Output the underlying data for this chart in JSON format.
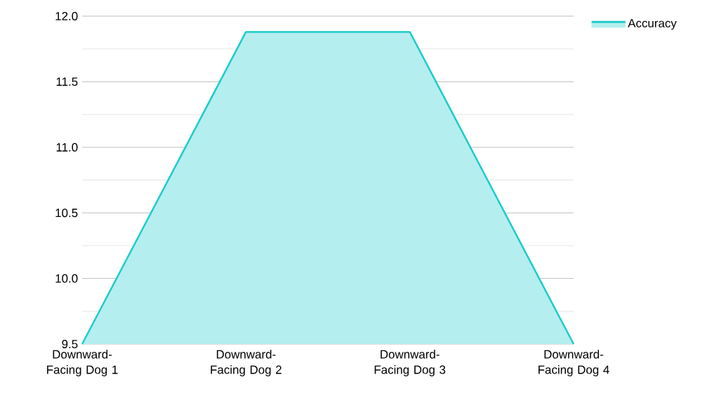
{
  "chart_data": {
    "type": "area",
    "categories": [
      "Downward-Facing Dog 1",
      "Downward-Facing Dog 2",
      "Downward-Facing Dog 3",
      "Downward-Facing Dog 4"
    ],
    "series": [
      {
        "name": "Accuracy",
        "color": "#1ecbcb",
        "values": [
          9.5,
          11.88,
          11.88,
          9.5
        ]
      }
    ],
    "ylim": [
      9.5,
      12.0
    ],
    "yticks": [
      {
        "value": 9.5,
        "label": "9.5"
      },
      {
        "value": 10.0,
        "label": "10.0"
      },
      {
        "value": 10.5,
        "label": "10.5"
      },
      {
        "value": 11.0,
        "label": "11.0"
      },
      {
        "value": 11.5,
        "label": "11.5"
      },
      {
        "value": 12.0,
        "label": "12.0"
      }
    ],
    "grid": "y",
    "legend": "top right"
  }
}
